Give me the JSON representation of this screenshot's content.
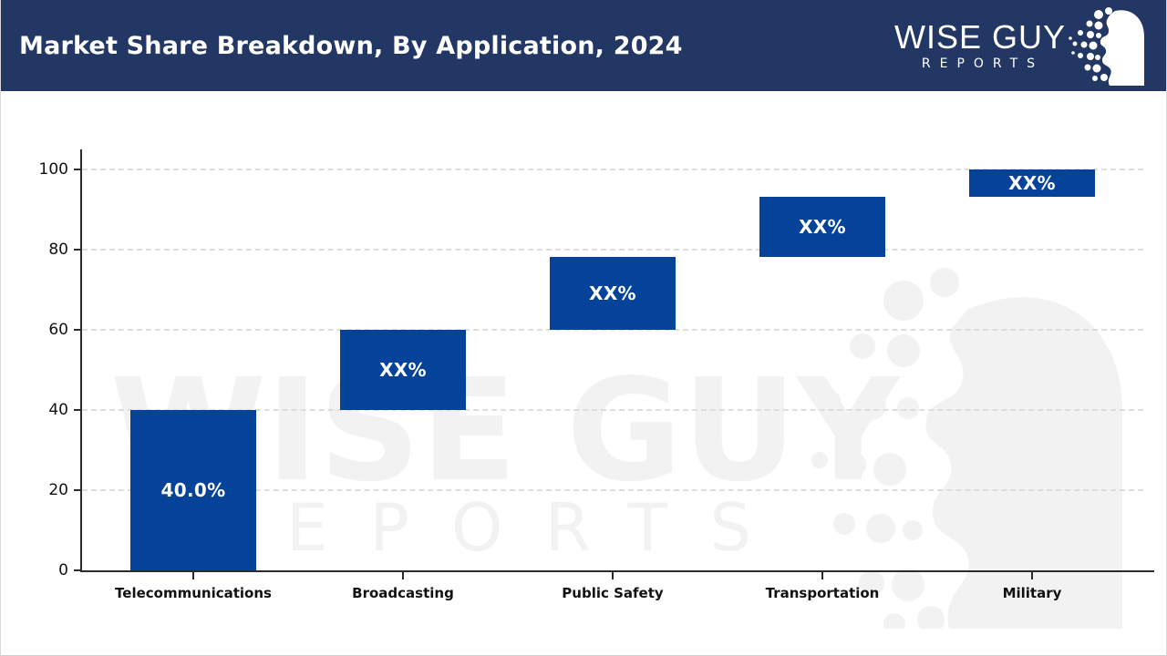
{
  "header": {
    "title": "Market Share Breakdown, By Application, 2024",
    "logo": {
      "line1": "WISE GUY",
      "line2": "REPORTS"
    }
  },
  "watermark": {
    "line1": "WISE GUY",
    "line2": "REPORTS"
  },
  "chart_data": {
    "type": "bar",
    "subtype": "floating-waterfall",
    "title": "Market Share Breakdown, By Application, 2024",
    "categories": [
      "Telecommunications",
      "Broadcasting",
      "Public Safety",
      "Transportation",
      "Military"
    ],
    "segments": [
      {
        "category": "Telecommunications",
        "start": 0,
        "end": 40,
        "value": 40,
        "label": "40.0%"
      },
      {
        "category": "Broadcasting",
        "start": 40,
        "end": 60,
        "value": 20,
        "label": "XX%"
      },
      {
        "category": "Public Safety",
        "start": 60,
        "end": 78,
        "value": 18,
        "label": "XX%"
      },
      {
        "category": "Transportation",
        "start": 78,
        "end": 93,
        "value": 15,
        "label": "XX%"
      },
      {
        "category": "Military",
        "start": 93,
        "end": 100,
        "value": 7,
        "label": "XX%"
      }
    ],
    "ylim": [
      0,
      100
    ],
    "yticks": [
      0,
      20,
      40,
      60,
      80,
      100
    ],
    "grid": "horizontal-dashed",
    "legend": "none",
    "colors": {
      "bar": "#05429A",
      "bar_label": "#ffffff",
      "header_bg": "#223763",
      "axis": "#2b2b2b",
      "gridline": "#dddddd",
      "tick_text": "#111111"
    }
  }
}
